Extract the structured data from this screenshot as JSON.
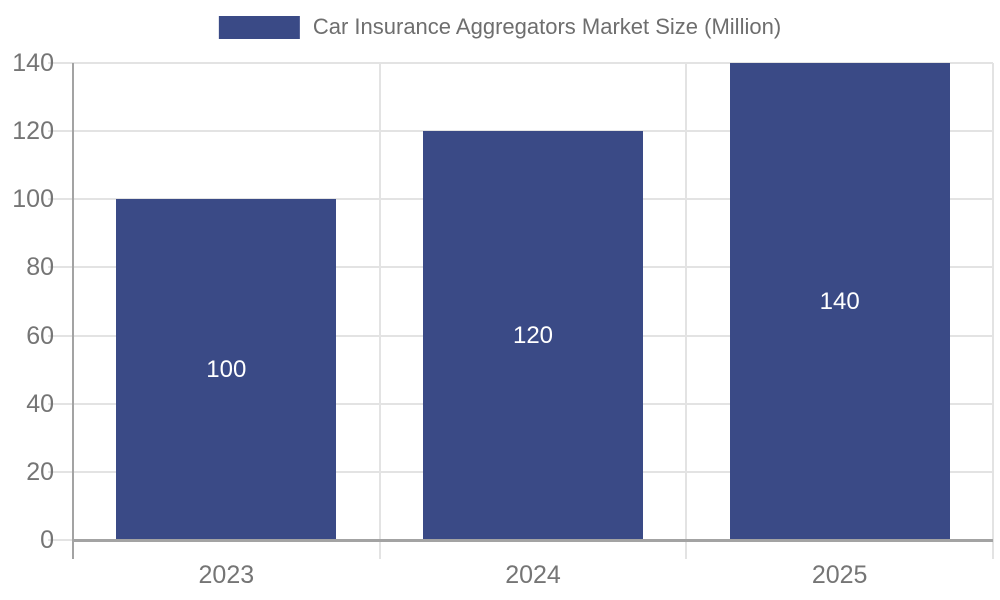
{
  "colors": {
    "bar": "#3A4A86",
    "grid": "#e3e3e3",
    "axis": "#a3a3a3",
    "tick_label": "#757575",
    "bar_label": "#ffffff",
    "legend_text": "#6e6e6e"
  },
  "chart_data": {
    "type": "bar",
    "title": "Car Insurance Aggregators Market Size (Million)",
    "categories": [
      "2023",
      "2024",
      "2025"
    ],
    "values": [
      100,
      120,
      140
    ],
    "bar_labels": [
      "100",
      "120",
      "140"
    ],
    "ylim": [
      0,
      140
    ],
    "yticks": [
      0,
      20,
      40,
      60,
      80,
      100,
      120,
      140
    ],
    "xlabel": "",
    "ylabel": "",
    "grid": true,
    "legend_position": "top",
    "legend_entries": [
      "Car Insurance Aggregators Market Size (Million)"
    ]
  }
}
